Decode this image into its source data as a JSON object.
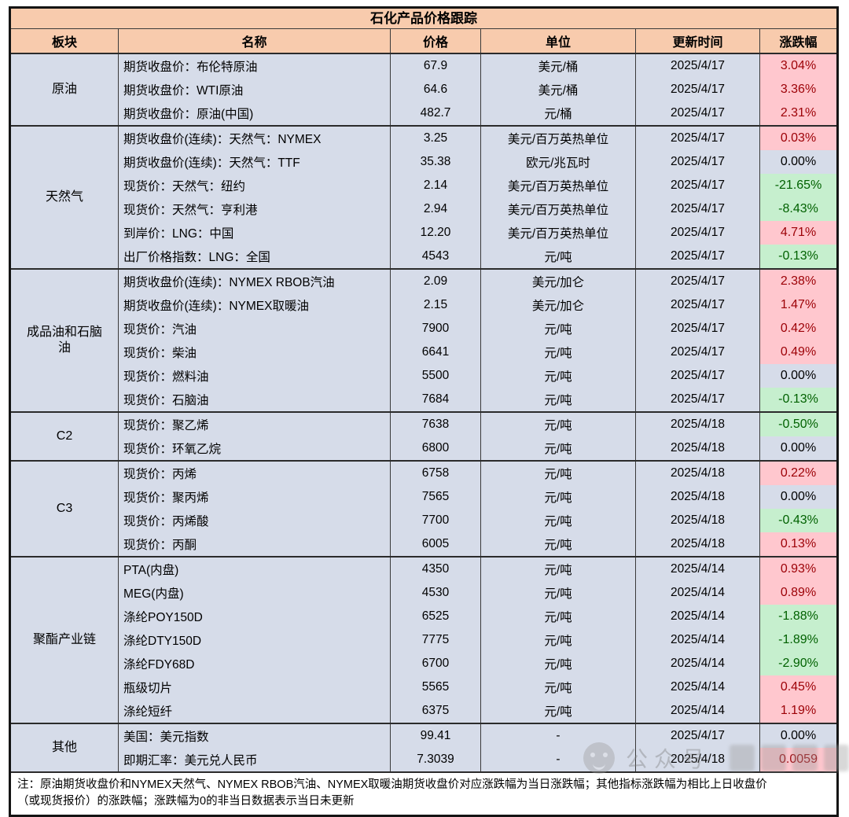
{
  "chart_data": {
    "type": "table",
    "title": "石化产品价格跟踪",
    "columns": [
      "板块",
      "名称",
      "价格",
      "单位",
      "更新时间",
      "涨跌幅"
    ],
    "sections": [
      {
        "sector": "原油",
        "rows": [
          {
            "name": "期货收盘价：布伦特原油",
            "price": "67.9",
            "unit": "美元/桶",
            "date": "2025/4/17",
            "change": "3.04%",
            "trend": "up"
          },
          {
            "name": "期货收盘价：WTI原油",
            "price": "64.6",
            "unit": "美元/桶",
            "date": "2025/4/17",
            "change": "3.36%",
            "trend": "up"
          },
          {
            "name": "期货收盘价：原油(中国)",
            "price": "482.7",
            "unit": "元/桶",
            "date": "2025/4/17",
            "change": "2.31%",
            "trend": "up"
          }
        ]
      },
      {
        "sector": "天然气",
        "rows": [
          {
            "name": "期货收盘价(连续)：天然气：NYMEX",
            "price": "3.25",
            "unit": "美元/百万英热单位",
            "date": "2025/4/17",
            "change": "0.03%",
            "trend": "up"
          },
          {
            "name": "期货收盘价(连续)：天然气：TTF",
            "price": "35.38",
            "unit": "欧元/兆瓦时",
            "date": "2025/4/17",
            "change": "0.00%",
            "trend": "flat"
          },
          {
            "name": "现货价：天然气：纽约",
            "price": "2.14",
            "unit": "美元/百万英热单位",
            "date": "2025/4/17",
            "change": "-21.65%",
            "trend": "down"
          },
          {
            "name": "现货价：天然气：亨利港",
            "price": "2.94",
            "unit": "美元/百万英热单位",
            "date": "2025/4/17",
            "change": "-8.43%",
            "trend": "down"
          },
          {
            "name": "到岸价：LNG：中国",
            "price": "12.20",
            "unit": "美元/百万英热单位",
            "date": "2025/4/17",
            "change": "4.71%",
            "trend": "up"
          },
          {
            "name": "出厂价格指数：LNG：全国",
            "price": "4543",
            "unit": "元/吨",
            "date": "2025/4/17",
            "change": "-0.13%",
            "trend": "down"
          }
        ]
      },
      {
        "sector": "成品油和石脑油",
        "rows": [
          {
            "name": "期货收盘价(连续)：NYMEX RBOB汽油",
            "price": "2.09",
            "unit": "美元/加仑",
            "date": "2025/4/17",
            "change": "2.38%",
            "trend": "up"
          },
          {
            "name": "期货收盘价(连续)：NYMEX取暖油",
            "price": "2.15",
            "unit": "美元/加仑",
            "date": "2025/4/17",
            "change": "1.47%",
            "trend": "up"
          },
          {
            "name": "现货价：汽油",
            "price": "7900",
            "unit": "元/吨",
            "date": "2025/4/17",
            "change": "0.42%",
            "trend": "up"
          },
          {
            "name": "现货价：柴油",
            "price": "6641",
            "unit": "元/吨",
            "date": "2025/4/17",
            "change": "0.49%",
            "trend": "up"
          },
          {
            "name": "现货价：燃料油",
            "price": "5500",
            "unit": "元/吨",
            "date": "2025/4/17",
            "change": "0.00%",
            "trend": "flat"
          },
          {
            "name": "现货价：石脑油",
            "price": "7684",
            "unit": "元/吨",
            "date": "2025/4/17",
            "change": "-0.13%",
            "trend": "down"
          }
        ]
      },
      {
        "sector": "C2",
        "rows": [
          {
            "name": "现货价：聚乙烯",
            "price": "7638",
            "unit": "元/吨",
            "date": "2025/4/18",
            "change": "-0.50%",
            "trend": "down"
          },
          {
            "name": "现货价：环氧乙烷",
            "price": "6800",
            "unit": "元/吨",
            "date": "2025/4/18",
            "change": "0.00%",
            "trend": "flat"
          }
        ]
      },
      {
        "sector": "C3",
        "rows": [
          {
            "name": "现货价：丙烯",
            "price": "6758",
            "unit": "元/吨",
            "date": "2025/4/18",
            "change": "0.22%",
            "trend": "up"
          },
          {
            "name": "现货价：聚丙烯",
            "price": "7565",
            "unit": "元/吨",
            "date": "2025/4/18",
            "change": "0.00%",
            "trend": "flat"
          },
          {
            "name": "现货价：丙烯酸",
            "price": "7700",
            "unit": "元/吨",
            "date": "2025/4/18",
            "change": "-0.43%",
            "trend": "down"
          },
          {
            "name": "现货价：丙酮",
            "price": "6005",
            "unit": "元/吨",
            "date": "2025/4/18",
            "change": "0.13%",
            "trend": "up"
          }
        ]
      },
      {
        "sector": "聚酯产业链",
        "rows": [
          {
            "name": "PTA(内盘)",
            "price": "4350",
            "unit": "元/吨",
            "date": "2025/4/14",
            "change": "0.93%",
            "trend": "up"
          },
          {
            "name": "MEG(内盘)",
            "price": "4530",
            "unit": "元/吨",
            "date": "2025/4/14",
            "change": "0.89%",
            "trend": "up"
          },
          {
            "name": "涤纶POY150D",
            "price": "6525",
            "unit": "元/吨",
            "date": "2025/4/14",
            "change": "-1.88%",
            "trend": "down"
          },
          {
            "name": "涤纶DTY150D",
            "price": "7775",
            "unit": "元/吨",
            "date": "2025/4/14",
            "change": "-1.89%",
            "trend": "down"
          },
          {
            "name": "涤纶FDY68D",
            "price": "6700",
            "unit": "元/吨",
            "date": "2025/4/14",
            "change": "-2.90%",
            "trend": "down"
          },
          {
            "name": "瓶级切片",
            "price": "5565",
            "unit": "元/吨",
            "date": "2025/4/14",
            "change": "0.45%",
            "trend": "up"
          },
          {
            "name": "涤纶短纤",
            "price": "6375",
            "unit": "元/吨",
            "date": "2025/4/14",
            "change": "1.19%",
            "trend": "up"
          }
        ]
      },
      {
        "sector": "其他",
        "rows": [
          {
            "name": "美国：美元指数",
            "price": "99.41",
            "unit": "-",
            "date": "2025/4/17",
            "change": "0.00%",
            "trend": "flat"
          },
          {
            "name": "即期汇率：美元兑人民币",
            "price": "7.3039",
            "unit": "-",
            "date": "2025/4/18",
            "change": "0.0059",
            "trend": "up"
          }
        ]
      }
    ],
    "note_lines": [
      "注：原油期货收盘价和NYMEX天然气、NYMEX RBOB汽油、NYMEX取暖油期货收盘价对应涨跌幅为当日涨跌幅；其他指标涨跌幅为相比上日收盘价",
      "（或现货报价）的涨跌幅；涨跌幅为0的非当日数据表示当日未更新"
    ]
  },
  "watermark": {
    "label": "公众号"
  },
  "colors": {
    "header_bg": "#F8CBAD",
    "cell_bg": "#D6DCE9",
    "up_bg": "#FFC7CE",
    "up_text": "#9C0006",
    "down_bg": "#C6EFCE",
    "down_text": "#006100",
    "border": "#3A3A3A"
  }
}
